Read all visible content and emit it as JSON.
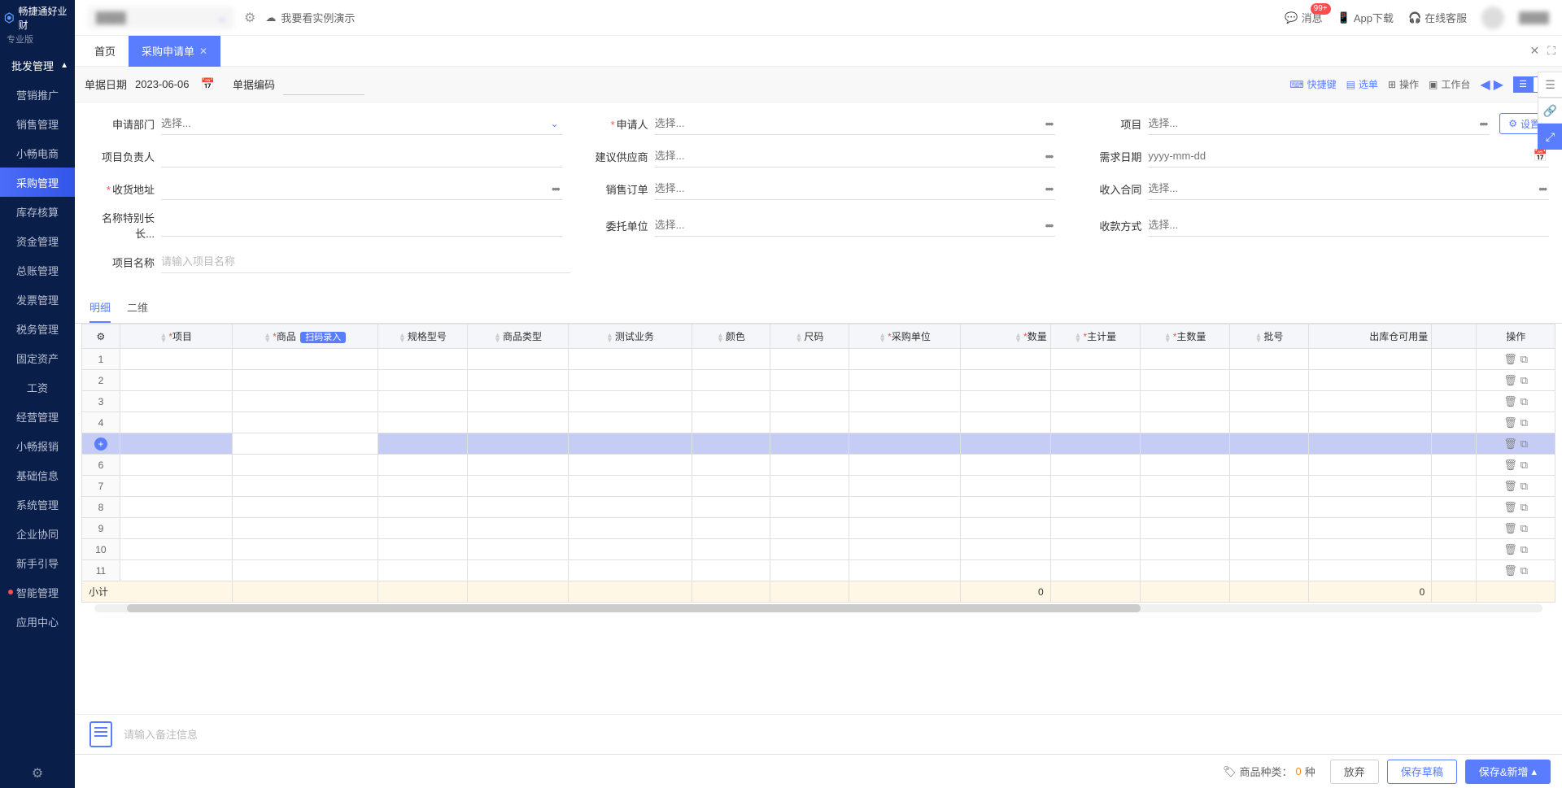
{
  "brand": {
    "name": "畅捷通好业财",
    "edition": "专业版"
  },
  "sidebar": {
    "items": [
      {
        "label": "批发管理",
        "expanded": true
      },
      {
        "label": "营销推广"
      },
      {
        "label": "销售管理"
      },
      {
        "label": "小畅电商"
      },
      {
        "label": "采购管理",
        "active": true
      },
      {
        "label": "库存核算"
      },
      {
        "label": "资金管理"
      },
      {
        "label": "总账管理"
      },
      {
        "label": "发票管理"
      },
      {
        "label": "税务管理"
      },
      {
        "label": "固定资产"
      },
      {
        "label": "工资"
      },
      {
        "label": "经营管理"
      },
      {
        "label": "小畅报销"
      },
      {
        "label": "基础信息"
      },
      {
        "label": "系统管理"
      },
      {
        "label": "企业协同"
      },
      {
        "label": "新手引导"
      },
      {
        "label": "智能管理",
        "dot": true
      },
      {
        "label": "应用中心"
      }
    ]
  },
  "header": {
    "demo_link": "我要看实例演示",
    "msg": "消息",
    "msg_badge": "99+",
    "app": "App下载",
    "cs": "在线客服"
  },
  "tabs": {
    "home": "首页",
    "active": "采购申请单"
  },
  "toolbar": {
    "date_label": "单据日期",
    "date_value": "2023-06-06",
    "code_label": "单据编码",
    "hotkey": "快捷键",
    "doc_select": "选单",
    "ops": "操作",
    "workbench": "工作台"
  },
  "form": {
    "placeholder_select": "选择...",
    "placeholder_date": "yyyy-mm-dd",
    "dept": "申请部门",
    "applicant": "申请人",
    "project": "项目",
    "pm": "项目负责人",
    "supplier": "建议供应商",
    "need_date": "需求日期",
    "addr": "收货地址",
    "so": "销售订单",
    "contract": "收入合同",
    "long_name": "名称特别长长...",
    "entrust": "委托单位",
    "pay_method": "收款方式",
    "proj_name": "项目名称",
    "proj_name_ph": "请输入项目名称",
    "settings": "设置"
  },
  "detail_tabs": {
    "t1": "明细",
    "t2": "二维"
  },
  "table": {
    "cols": {
      "project": "项目",
      "product": "商品",
      "scan": "扫码录入",
      "spec": "规格型号",
      "type": "商品类型",
      "biz": "测试业务",
      "color": "颜色",
      "size": "尺码",
      "unit": "采购单位",
      "qty": "数量",
      "main_unit": "主计量",
      "main_qty": "主数量",
      "batch": "批号",
      "avail": "出库仓可用量",
      "ops": "操作"
    },
    "row_count": 11,
    "active_row": 5,
    "subtotal_label": "小计",
    "subtotal_qty": "0",
    "subtotal_avail": "0"
  },
  "remarks": {
    "placeholder": "请输入备注信息"
  },
  "footer": {
    "sku_label": "商品种类：",
    "sku_count": "0",
    "sku_unit": "种",
    "discard": "放弃",
    "draft": "保存草稿",
    "save_new": "保存&新增"
  },
  "colors": {
    "primary": "#5a7cff",
    "sidebar_bg": "#0a1e4a",
    "danger": "#ff4d4f",
    "row_highlight": "#c5cdf5",
    "subtotal_bg": "#fff7e6"
  }
}
